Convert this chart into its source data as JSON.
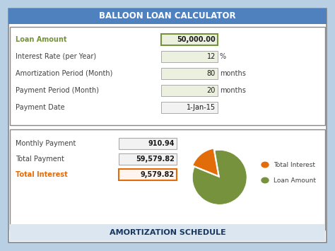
{
  "title": "BALLOON LOAN CALCULATOR",
  "footer": "AMORTIZATION SCHEDULE",
  "bg_color": "#b8cfe4",
  "header_color": "#4e81bd",
  "header_text_color": "#ffffff",
  "panel_bg": "#ffffff",
  "footer_bg": "#dce6f1",
  "input_label_green": "#76923c",
  "input_label_dark": "#404040",
  "interest_label_orange": "#e36c0a",
  "input_box_bg_green": "#ebf1de",
  "input_box_bg_gray": "#f2f2f2",
  "input_box_border_green": "#76923c",
  "input_box_border_orange": "#e36c0a",
  "input_box_border_gray": "#aaaaaa",
  "outer_border_color": "#888888",
  "input_labels": [
    "Loan Amount",
    "Interest Rate (per Year)",
    "Amortization Period (Month)",
    "Payment Period (Month)",
    "Payment Date"
  ],
  "input_values": [
    "50,000.00",
    "12",
    "80",
    "20",
    "1-Jan-15"
  ],
  "input_units": [
    "",
    "%",
    "months",
    "months",
    ""
  ],
  "result_labels": [
    "Monthly Payment",
    "Total Payment",
    "Total Interest"
  ],
  "result_values": [
    "910.94",
    "59,579.82",
    "9,579.82"
  ],
  "pie_values": [
    9579.82,
    50000.0
  ],
  "pie_colors": [
    "#e36c0a",
    "#76923c"
  ],
  "pie_labels": [
    "Total Interest",
    "Loan Amount"
  ],
  "pie_explode": [
    0.06,
    0.03
  ],
  "pie_startangle": 100
}
